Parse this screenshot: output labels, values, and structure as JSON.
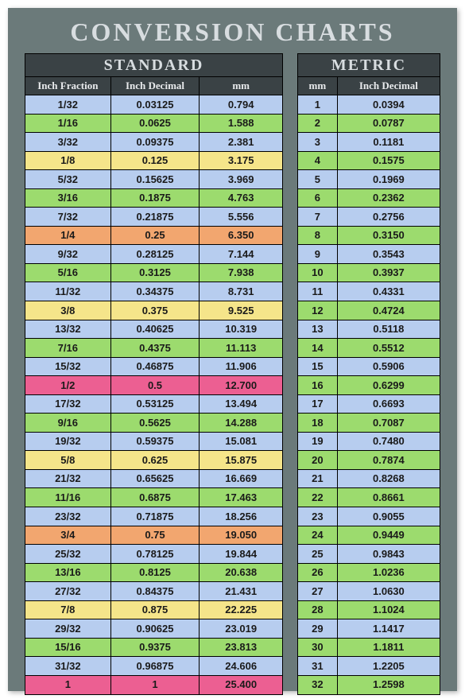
{
  "title": "CONVERSION CHARTS",
  "colors": {
    "blue": "#b7cdef",
    "green": "#9cdb6e",
    "yellow": "#f5e58a",
    "orange": "#f2a66f",
    "pink": "#ec5f92",
    "header_bg": "#3a4245",
    "poster_bg": "#6b7a7a",
    "title_color": "#d8dde0"
  },
  "standard": {
    "header": "STANDARD",
    "columns": [
      "Inch Fraction",
      "Inch Decimal",
      "mm"
    ],
    "rows": [
      {
        "f": "1/32",
        "d": "0.03125",
        "mm": "0.794",
        "c": "blue"
      },
      {
        "f": "1/16",
        "d": "0.0625",
        "mm": "1.588",
        "c": "green"
      },
      {
        "f": "3/32",
        "d": "0.09375",
        "mm": "2.381",
        "c": "blue"
      },
      {
        "f": "1/8",
        "d": "0.125",
        "mm": "3.175",
        "c": "yellow"
      },
      {
        "f": "5/32",
        "d": "0.15625",
        "mm": "3.969",
        "c": "blue"
      },
      {
        "f": "3/16",
        "d": "0.1875",
        "mm": "4.763",
        "c": "green"
      },
      {
        "f": "7/32",
        "d": "0.21875",
        "mm": "5.556",
        "c": "blue"
      },
      {
        "f": "1/4",
        "d": "0.25",
        "mm": "6.350",
        "c": "orange"
      },
      {
        "f": "9/32",
        "d": "0.28125",
        "mm": "7.144",
        "c": "blue"
      },
      {
        "f": "5/16",
        "d": "0.3125",
        "mm": "7.938",
        "c": "green"
      },
      {
        "f": "11/32",
        "d": "0.34375",
        "mm": "8.731",
        "c": "blue"
      },
      {
        "f": "3/8",
        "d": "0.375",
        "mm": "9.525",
        "c": "yellow"
      },
      {
        "f": "13/32",
        "d": "0.40625",
        "mm": "10.319",
        "c": "blue"
      },
      {
        "f": "7/16",
        "d": "0.4375",
        "mm": "11.113",
        "c": "green"
      },
      {
        "f": "15/32",
        "d": "0.46875",
        "mm": "11.906",
        "c": "blue"
      },
      {
        "f": "1/2",
        "d": "0.5",
        "mm": "12.700",
        "c": "pink"
      },
      {
        "f": "17/32",
        "d": "0.53125",
        "mm": "13.494",
        "c": "blue"
      },
      {
        "f": "9/16",
        "d": "0.5625",
        "mm": "14.288",
        "c": "green"
      },
      {
        "f": "19/32",
        "d": "0.59375",
        "mm": "15.081",
        "c": "blue"
      },
      {
        "f": "5/8",
        "d": "0.625",
        "mm": "15.875",
        "c": "yellow"
      },
      {
        "f": "21/32",
        "d": "0.65625",
        "mm": "16.669",
        "c": "blue"
      },
      {
        "f": "11/16",
        "d": "0.6875",
        "mm": "17.463",
        "c": "green"
      },
      {
        "f": "23/32",
        "d": "0.71875",
        "mm": "18.256",
        "c": "blue"
      },
      {
        "f": "3/4",
        "d": "0.75",
        "mm": "19.050",
        "c": "orange"
      },
      {
        "f": "25/32",
        "d": "0.78125",
        "mm": "19.844",
        "c": "blue"
      },
      {
        "f": "13/16",
        "d": "0.8125",
        "mm": "20.638",
        "c": "green"
      },
      {
        "f": "27/32",
        "d": "0.84375",
        "mm": "21.431",
        "c": "blue"
      },
      {
        "f": "7/8",
        "d": "0.875",
        "mm": "22.225",
        "c": "yellow"
      },
      {
        "f": "29/32",
        "d": "0.90625",
        "mm": "23.019",
        "c": "blue"
      },
      {
        "f": "15/16",
        "d": "0.9375",
        "mm": "23.813",
        "c": "green"
      },
      {
        "f": "31/32",
        "d": "0.96875",
        "mm": "24.606",
        "c": "blue"
      },
      {
        "f": "1",
        "d": "1",
        "mm": "25.400",
        "c": "pink"
      }
    ]
  },
  "metric": {
    "header": "METRIC",
    "columns": [
      "mm",
      "Inch Decimal"
    ],
    "rows": [
      {
        "mm": "1",
        "d": "0.0394",
        "c": "blue"
      },
      {
        "mm": "2",
        "d": "0.0787",
        "c": "green"
      },
      {
        "mm": "3",
        "d": "0.1181",
        "c": "blue"
      },
      {
        "mm": "4",
        "d": "0.1575",
        "c": "green"
      },
      {
        "mm": "5",
        "d": "0.1969",
        "c": "blue"
      },
      {
        "mm": "6",
        "d": "0.2362",
        "c": "green"
      },
      {
        "mm": "7",
        "d": "0.2756",
        "c": "blue"
      },
      {
        "mm": "8",
        "d": "0.3150",
        "c": "green"
      },
      {
        "mm": "9",
        "d": "0.3543",
        "c": "blue"
      },
      {
        "mm": "10",
        "d": "0.3937",
        "c": "green"
      },
      {
        "mm": "11",
        "d": "0.4331",
        "c": "blue"
      },
      {
        "mm": "12",
        "d": "0.4724",
        "c": "green"
      },
      {
        "mm": "13",
        "d": "0.5118",
        "c": "blue"
      },
      {
        "mm": "14",
        "d": "0.5512",
        "c": "green"
      },
      {
        "mm": "15",
        "d": "0.5906",
        "c": "blue"
      },
      {
        "mm": "16",
        "d": "0.6299",
        "c": "green"
      },
      {
        "mm": "17",
        "d": "0.6693",
        "c": "blue"
      },
      {
        "mm": "18",
        "d": "0.7087",
        "c": "green"
      },
      {
        "mm": "19",
        "d": "0.7480",
        "c": "blue"
      },
      {
        "mm": "20",
        "d": "0.7874",
        "c": "green"
      },
      {
        "mm": "21",
        "d": "0.8268",
        "c": "blue"
      },
      {
        "mm": "22",
        "d": "0.8661",
        "c": "green"
      },
      {
        "mm": "23",
        "d": "0.9055",
        "c": "blue"
      },
      {
        "mm": "24",
        "d": "0.9449",
        "c": "green"
      },
      {
        "mm": "25",
        "d": "0.9843",
        "c": "blue"
      },
      {
        "mm": "26",
        "d": "1.0236",
        "c": "green"
      },
      {
        "mm": "27",
        "d": "1.0630",
        "c": "blue"
      },
      {
        "mm": "28",
        "d": "1.1024",
        "c": "green"
      },
      {
        "mm": "29",
        "d": "1.1417",
        "c": "blue"
      },
      {
        "mm": "30",
        "d": "1.1811",
        "c": "green"
      },
      {
        "mm": "31",
        "d": "1.2205",
        "c": "blue"
      },
      {
        "mm": "32",
        "d": "1.2598",
        "c": "green"
      }
    ]
  }
}
